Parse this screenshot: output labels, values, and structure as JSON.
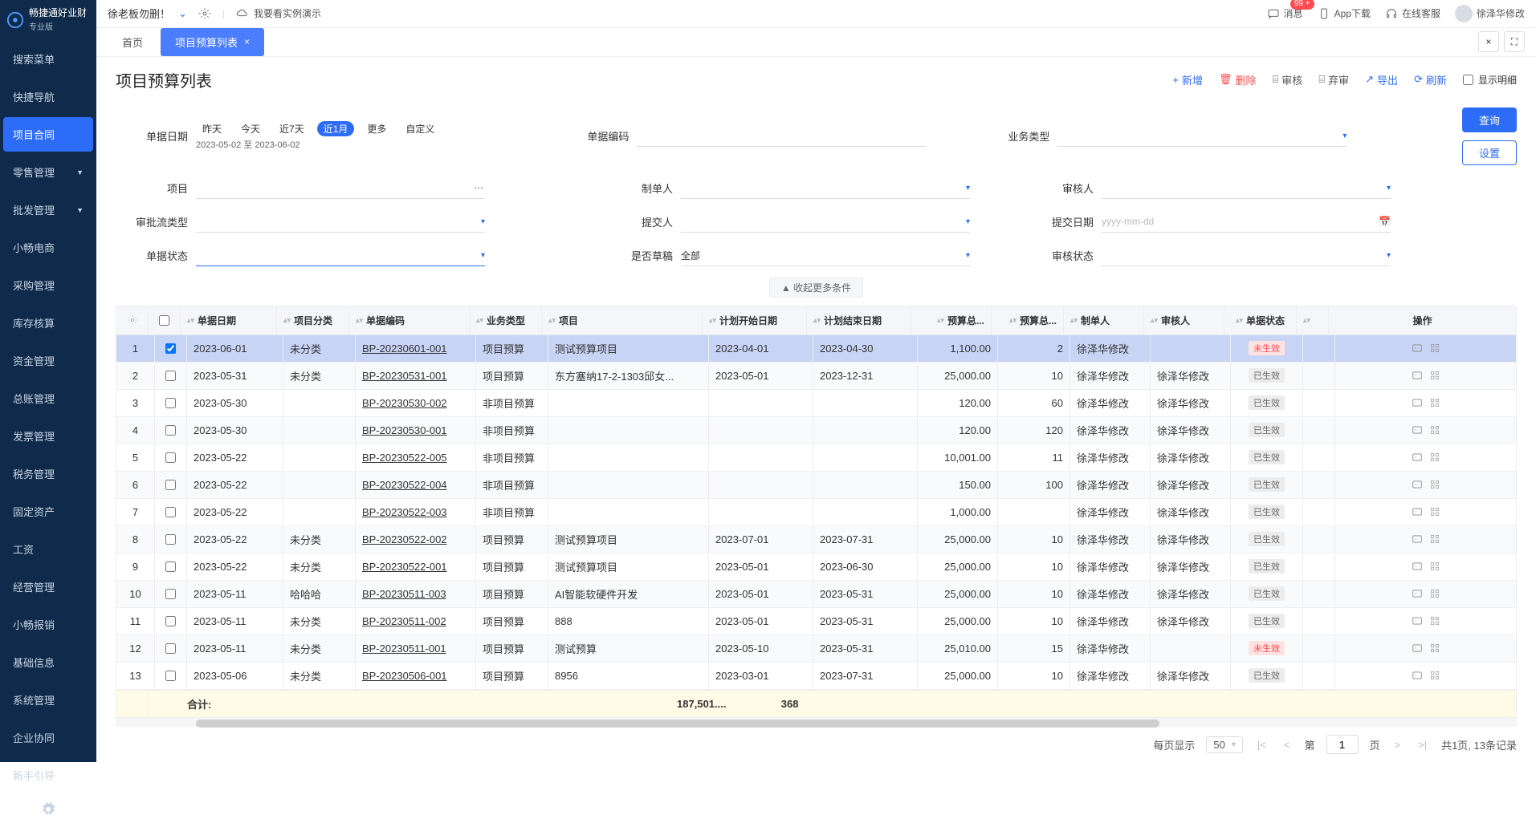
{
  "brand": {
    "name": "畅捷通好业财",
    "edition": "专业版"
  },
  "sidebar": {
    "items": [
      {
        "label": "搜索菜单"
      },
      {
        "label": "快捷导航"
      },
      {
        "label": "项目合同",
        "active": true
      },
      {
        "label": "零售管理",
        "expand": true
      },
      {
        "label": "批发管理",
        "expand": true
      },
      {
        "label": "小畅电商"
      },
      {
        "label": "采购管理"
      },
      {
        "label": "库存核算"
      },
      {
        "label": "资金管理"
      },
      {
        "label": "总账管理"
      },
      {
        "label": "发票管理"
      },
      {
        "label": "税务管理"
      },
      {
        "label": "固定资产"
      },
      {
        "label": "工资"
      },
      {
        "label": "经营管理"
      },
      {
        "label": "小畅报销"
      },
      {
        "label": "基础信息"
      },
      {
        "label": "系统管理"
      },
      {
        "label": "企业协同"
      },
      {
        "label": "新手引导"
      }
    ]
  },
  "topbar": {
    "org": "徐老板勿删！",
    "demo": "我要看实例演示",
    "right": {
      "msg_label": "消息",
      "msg_badge": "99 +",
      "app": "App下载",
      "cs": "在线客服",
      "user": "徐泽华修改"
    }
  },
  "tabs": {
    "home": "首页",
    "active": "项目预算列表"
  },
  "page": {
    "title": "项目预算列表"
  },
  "toolbar": {
    "add": "新增",
    "del": "删除",
    "audit": "审核",
    "abandon": "弃审",
    "export": "导出",
    "refresh": "刷新",
    "detail": "显示明细"
  },
  "filters": {
    "date_label": "单据日期",
    "date_opts": [
      "昨天",
      "今天",
      "近7天",
      "近1月",
      "更多",
      "自定义"
    ],
    "date_active": 3,
    "date_range": "2023-05-02 至 2023-06-02",
    "code_label": "单据编码",
    "btype_label": "业务类型",
    "project_label": "项目",
    "maker_label": "制单人",
    "auditor_label": "审核人",
    "flow_label": "审批流类型",
    "submitter_label": "提交人",
    "submit_date_label": "提交日期",
    "submit_date_ph": "yyyy-mm-dd",
    "status_label": "单据状态",
    "draft_label": "是否草稿",
    "draft_value": "全部",
    "audit_status_label": "审核状态",
    "btn_search": "查询",
    "btn_config": "设置",
    "collapse": "收起更多条件"
  },
  "table": {
    "cols": {
      "date": "单据日期",
      "cat": "项目分类",
      "code": "单据编码",
      "btype": "业务类型",
      "proj": "项目",
      "start": "计划开始日期",
      "end": "计划结束日期",
      "amt1": "预算总...",
      "amt2": "预算总...",
      "maker": "制单人",
      "auditor": "审核人",
      "status": "单据状态",
      "ops": "操作"
    },
    "status_ok": "已生效",
    "status_no": "未生效",
    "rows": [
      {
        "date": "2023-06-01",
        "cat": "未分类",
        "code": "BP-20230601-001",
        "btype": "项目预算",
        "proj": "测试预算项目",
        "start": "2023-04-01",
        "end": "2023-04-30",
        "amt1": "1,100.00",
        "amt2": "2",
        "maker": "徐泽华修改",
        "auditor": "",
        "status": "no",
        "selected": true
      },
      {
        "date": "2023-05-31",
        "cat": "未分类",
        "code": "BP-20230531-001",
        "btype": "项目预算",
        "proj": "东方塞纳17-2-1303邱女...",
        "start": "2023-05-01",
        "end": "2023-12-31",
        "amt1": "25,000.00",
        "amt2": "10",
        "maker": "徐泽华修改",
        "auditor": "徐泽华修改",
        "status": "ok"
      },
      {
        "date": "2023-05-30",
        "cat": "",
        "code": "BP-20230530-002",
        "btype": "非项目预算",
        "proj": "",
        "start": "",
        "end": "",
        "amt1": "120.00",
        "amt2": "60",
        "maker": "徐泽华修改",
        "auditor": "徐泽华修改",
        "status": "ok"
      },
      {
        "date": "2023-05-30",
        "cat": "",
        "code": "BP-20230530-001",
        "btype": "非项目预算",
        "proj": "",
        "start": "",
        "end": "",
        "amt1": "120.00",
        "amt2": "120",
        "maker": "徐泽华修改",
        "auditor": "徐泽华修改",
        "status": "ok"
      },
      {
        "date": "2023-05-22",
        "cat": "",
        "code": "BP-20230522-005",
        "btype": "非项目预算",
        "proj": "",
        "start": "",
        "end": "",
        "amt1": "10,001.00",
        "amt2": "11",
        "maker": "徐泽华修改",
        "auditor": "徐泽华修改",
        "status": "ok"
      },
      {
        "date": "2023-05-22",
        "cat": "",
        "code": "BP-20230522-004",
        "btype": "非项目预算",
        "proj": "",
        "start": "",
        "end": "",
        "amt1": "150.00",
        "amt2": "100",
        "maker": "徐泽华修改",
        "auditor": "徐泽华修改",
        "status": "ok"
      },
      {
        "date": "2023-05-22",
        "cat": "",
        "code": "BP-20230522-003",
        "btype": "非项目预算",
        "proj": "",
        "start": "",
        "end": "",
        "amt1": "1,000.00",
        "amt2": "",
        "maker": "徐泽华修改",
        "auditor": "徐泽华修改",
        "status": "ok"
      },
      {
        "date": "2023-05-22",
        "cat": "未分类",
        "code": "BP-20230522-002",
        "btype": "项目预算",
        "proj": "测试预算项目",
        "start": "2023-07-01",
        "end": "2023-07-31",
        "amt1": "25,000.00",
        "amt2": "10",
        "maker": "徐泽华修改",
        "auditor": "徐泽华修改",
        "status": "ok"
      },
      {
        "date": "2023-05-22",
        "cat": "未分类",
        "code": "BP-20230522-001",
        "btype": "项目预算",
        "proj": "测试预算项目",
        "start": "2023-05-01",
        "end": "2023-06-30",
        "amt1": "25,000.00",
        "amt2": "10",
        "maker": "徐泽华修改",
        "auditor": "徐泽华修改",
        "status": "ok"
      },
      {
        "date": "2023-05-11",
        "cat": "哈哈哈",
        "code": "BP-20230511-003",
        "btype": "项目预算",
        "proj": "AI智能软硬件开发",
        "start": "2023-05-01",
        "end": "2023-05-31",
        "amt1": "25,000.00",
        "amt2": "10",
        "maker": "徐泽华修改",
        "auditor": "徐泽华修改",
        "status": "ok"
      },
      {
        "date": "2023-05-11",
        "cat": "未分类",
        "code": "BP-20230511-002",
        "btype": "项目预算",
        "proj": "888",
        "start": "2023-05-01",
        "end": "2023-05-31",
        "amt1": "25,000.00",
        "amt2": "10",
        "maker": "徐泽华修改",
        "auditor": "徐泽华修改",
        "status": "ok"
      },
      {
        "date": "2023-05-11",
        "cat": "未分类",
        "code": "BP-20230511-001",
        "btype": "项目预算",
        "proj": "测试预算",
        "start": "2023-05-10",
        "end": "2023-05-31",
        "amt1": "25,010.00",
        "amt2": "15",
        "maker": "徐泽华修改",
        "auditor": "",
        "status": "no"
      },
      {
        "date": "2023-05-06",
        "cat": "未分类",
        "code": "BP-20230506-001",
        "btype": "项目预算",
        "proj": "8956",
        "start": "2023-03-01",
        "end": "2023-07-31",
        "amt1": "25,000.00",
        "amt2": "10",
        "maker": "徐泽华修改",
        "auditor": "徐泽华修改",
        "status": "ok"
      }
    ],
    "total_label": "合计:",
    "total_amt1": "187,501....",
    "total_amt2": "368"
  },
  "pager": {
    "per_label": "每页显示",
    "per_value": "50",
    "page_prefix": "第",
    "page_value": "1",
    "page_suffix": "页",
    "summary": "共1页, 13条记录"
  }
}
